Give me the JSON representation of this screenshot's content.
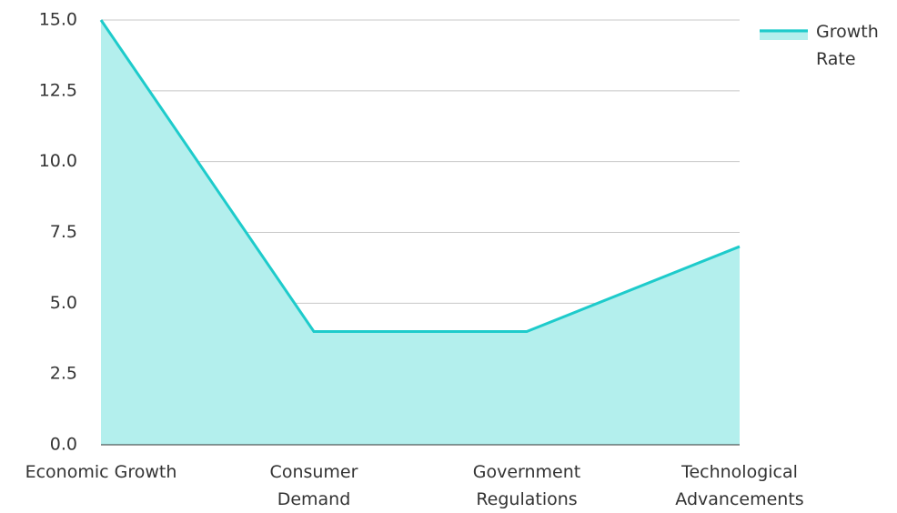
{
  "chart_data": {
    "type": "area",
    "categories": [
      "Economic Growth",
      "Consumer Demand",
      "Government Regulations",
      "Technological Advancements"
    ],
    "series": [
      {
        "name": "Growth Rate",
        "color": "#1ecbcb",
        "fill": "#b3efed",
        "values": [
          15,
          4,
          4,
          7
        ]
      }
    ],
    "ylim": [
      0,
      15
    ],
    "yticks": [
      {
        "value": 0,
        "label": "0.0"
      },
      2.5,
      {
        "value": 5,
        "label": "5.0"
      },
      7.5,
      {
        "value": 10,
        "label": "10.0"
      },
      12.5,
      {
        "value": 15,
        "label": "15.0"
      }
    ],
    "grid": true,
    "legend": "top-right"
  }
}
